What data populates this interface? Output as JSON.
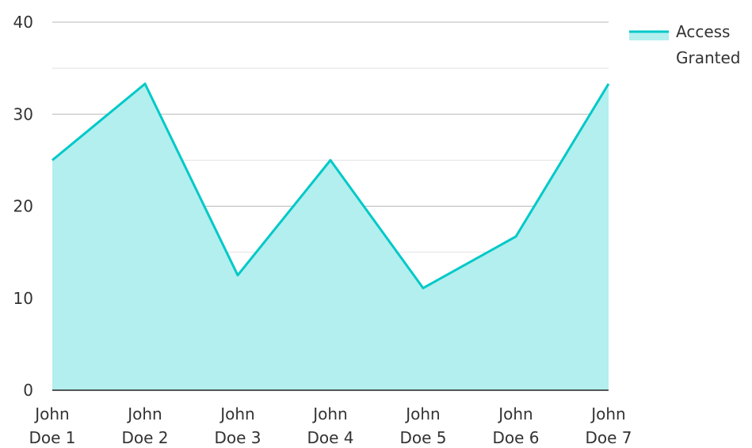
{
  "colors": {
    "line": "#00c9c8",
    "fill": "#b2efee",
    "grid_major": "#b8b8b8",
    "grid_minor": "#e2e2e2",
    "axis": "#222222",
    "text": "#333333"
  },
  "chart_data": {
    "type": "area",
    "title": "",
    "xlabel": "",
    "ylabel": "",
    "categories": [
      [
        "John",
        "Doe 1"
      ],
      [
        "John",
        "Doe 2"
      ],
      [
        "John",
        "Doe 3"
      ],
      [
        "John",
        "Doe 4"
      ],
      [
        "John",
        "Doe 5"
      ],
      [
        "John",
        "Doe 6"
      ],
      [
        "John",
        "Doe 7"
      ]
    ],
    "series": [
      {
        "name": [
          "Access",
          "Granted"
        ],
        "values": [
          25,
          33.3,
          12.5,
          25,
          11.1,
          16.7,
          33.3
        ]
      }
    ],
    "ylim": [
      0,
      40
    ],
    "yticks": [
      "0",
      "10",
      "20",
      "30",
      "40"
    ],
    "grid": true,
    "legend_position": "top-right"
  }
}
